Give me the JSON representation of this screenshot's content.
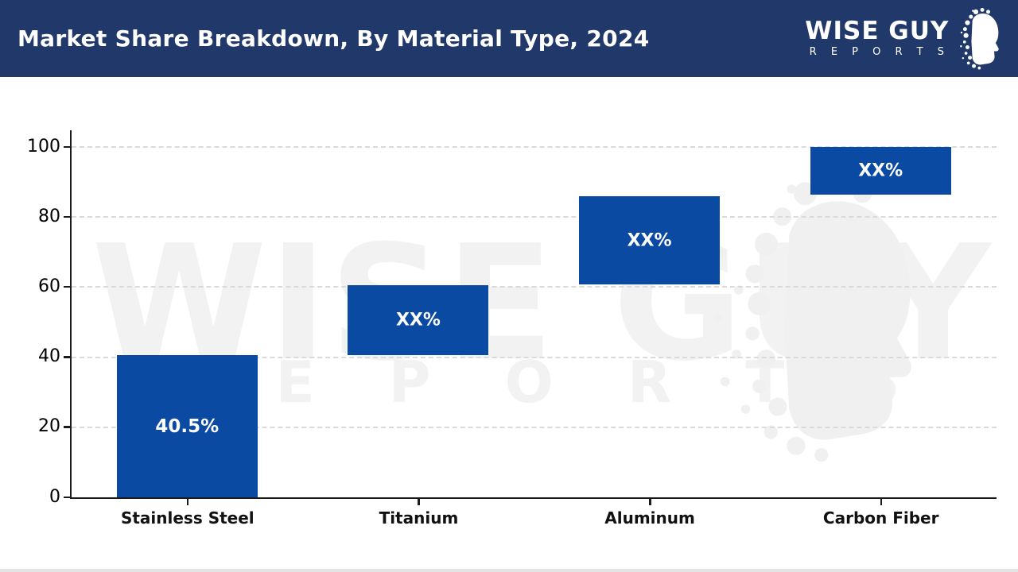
{
  "header": {
    "title": "Market Share Breakdown, By Material Type, 2024",
    "bg_color": "#21386b",
    "logo": {
      "main": "WISE GUY",
      "sub": "R E P O R T S"
    }
  },
  "watermark": {
    "line1": "WISE GUY",
    "line2": "R E P O R T S"
  },
  "chart_data": {
    "type": "bar",
    "subtype": "waterfall",
    "title": "Market Share Breakdown, By Material Type, 2024",
    "categories": [
      "Stainless Steel",
      "Titanium",
      "Aluminum",
      "Carbon Fiber"
    ],
    "segments": [
      {
        "category": "Stainless Steel",
        "start": 0,
        "end": 40.5,
        "label": "40.5%"
      },
      {
        "category": "Titanium",
        "start": 40.6,
        "end": 60.6,
        "label": "XX%"
      },
      {
        "category": "Aluminum",
        "start": 60.7,
        "end": 86.0,
        "label": "XX%"
      },
      {
        "category": "Carbon Fiber",
        "start": 86.4,
        "end": 100.0,
        "label": "XX%"
      }
    ],
    "xlabel": "",
    "ylabel": "",
    "ylim": [
      0,
      105
    ],
    "yticks": [
      0,
      20,
      40,
      60,
      80,
      100
    ],
    "grid": "dashed horizontal gridlines",
    "legend": "none",
    "bar_color": "#0b4aa2",
    "bar_label_color": "#ffffff"
  },
  "colors": {
    "header_bg": "#21386b",
    "bar_blue": "#0b4aa2",
    "gridline": "#dadada",
    "axis": "#1a1a1a",
    "watermark": "#f2f2f2"
  }
}
